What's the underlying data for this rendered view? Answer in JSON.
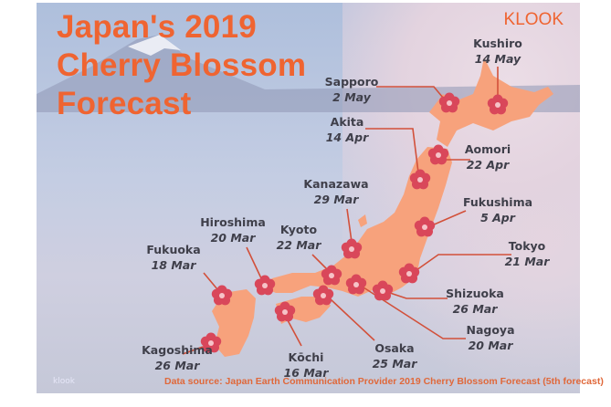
{
  "title": [
    "Japan's 2019",
    "Cherry Blossom",
    "Forecast"
  ],
  "brand": "KLOOK",
  "watermark": "klook",
  "source": "Data source: Japan Earth Communication Provider 2019 Cherry Blossom Forecast (5th forecast)",
  "colors": {
    "accent": "#ef6431",
    "land": "#f7a27c",
    "marker": "#d9475a",
    "line": "#d2503a"
  },
  "icons": {
    "marker": "cherry-blossom-icon"
  },
  "cities": [
    {
      "name": "Kushiro",
      "date": "14 May"
    },
    {
      "name": "Sapporo",
      "date": "2 May"
    },
    {
      "name": "Akita",
      "date": "14 Apr"
    },
    {
      "name": "Aomori",
      "date": "22 Apr"
    },
    {
      "name": "Kanazawa",
      "date": "29 Mar"
    },
    {
      "name": "Fukushima",
      "date": "5 Apr"
    },
    {
      "name": "Hiroshima",
      "date": "20 Mar"
    },
    {
      "name": "Kyoto",
      "date": "22 Mar"
    },
    {
      "name": "Tokyo",
      "date": "21 Mar"
    },
    {
      "name": "Fukuoka",
      "date": "18 Mar"
    },
    {
      "name": "Shizuoka",
      "date": "26 Mar"
    },
    {
      "name": "Nagoya",
      "date": "20 Mar"
    },
    {
      "name": "Osaka",
      "date": "25 Mar"
    },
    {
      "name": "Kagoshima",
      "date": "26 Mar"
    },
    {
      "name": "Kōchi",
      "date": "16 Mar"
    }
  ]
}
